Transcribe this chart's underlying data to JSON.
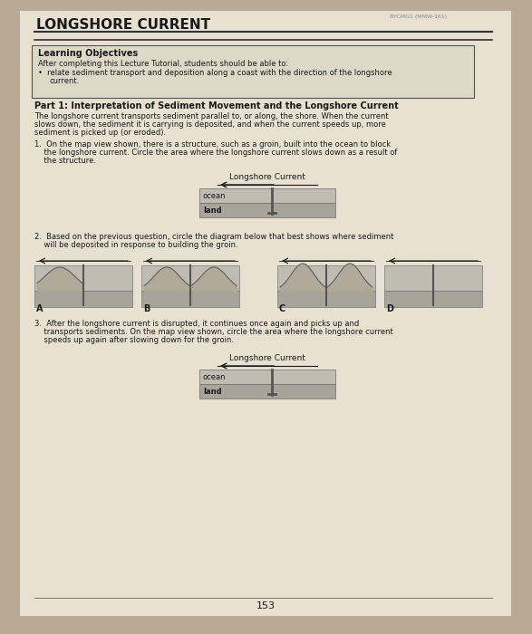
{
  "title": "LONGSHORE CURRENT",
  "page_number": "153",
  "bg_color": "#b8aa94",
  "paper_color": "#e8e0d0",
  "learning_objectives_title": "Learning Objectives",
  "learning_objectives_intro": "After completing this Lecture Tutorial, students should be able to:",
  "learning_objectives_bullet": "relate sediment transport and deposition along a coast with the direction of the longshore",
  "learning_objectives_bullet2": "current.",
  "part1_title": "Part 1: Interpretation of Sediment Movement and the Longshore Current",
  "body_lines": [
    "The longshore current transports sediment parallel to, or along, the shore. When the current",
    "slows down, the sediment it is carrying is deposited, and when the current speeds up, more",
    "sediment is picked up (or eroded)."
  ],
  "q1_lines": [
    "1.  On the map view shown, there is a structure, such as a groin, built into the ocean to block",
    "    the longshore current. Circle the area where the longshore current slows down as a result of",
    "    the structure."
  ],
  "q2_lines": [
    "2.  Based on the previous question, circle the diagram below that best shows where sediment",
    "    will be deposited in response to building the groin."
  ],
  "q3_lines": [
    "3.  After the longshore current is disrupted, it continues once again and picks up and",
    "    transports sediments. On the map view shown, circle the area where the longshore current",
    "    speeds up again after slowing down for the groin."
  ],
  "q2_labels": [
    "A",
    "B",
    "C",
    "D"
  ],
  "ocean_color": "#c0bcb2",
  "land_color": "#a8a49a",
  "groin_color": "#555555",
  "text_color": "#1a1a1a"
}
